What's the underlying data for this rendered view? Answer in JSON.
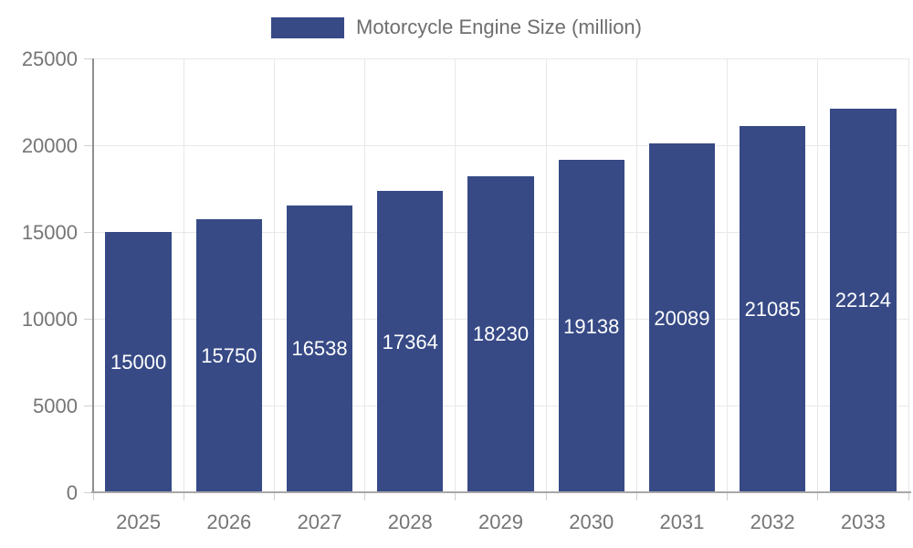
{
  "chart_data": {
    "type": "bar",
    "title": "Motorcycle Engine Size (million)",
    "categories": [
      "2025",
      "2026",
      "2027",
      "2028",
      "2029",
      "2030",
      "2031",
      "2032",
      "2033"
    ],
    "values": [
      15000,
      15750,
      16538,
      17364,
      18230,
      19138,
      20089,
      21085,
      22124
    ],
    "xlabel": "",
    "ylabel": "",
    "ylim": [
      0,
      25000
    ],
    "yticks": [
      0,
      5000,
      10000,
      15000,
      20000,
      25000
    ],
    "grid": true,
    "legend_position": "top-center",
    "bar_color": "#374a86",
    "bar_label_color": "#ffffff",
    "axis_text_color": "#757575",
    "legend_text_color": "#6e6e6e",
    "grid_color": "#e8e8e8",
    "axis_line_color": "#8f8f8f"
  },
  "legend": {
    "label": "Motorcycle Engine Size (million)"
  }
}
